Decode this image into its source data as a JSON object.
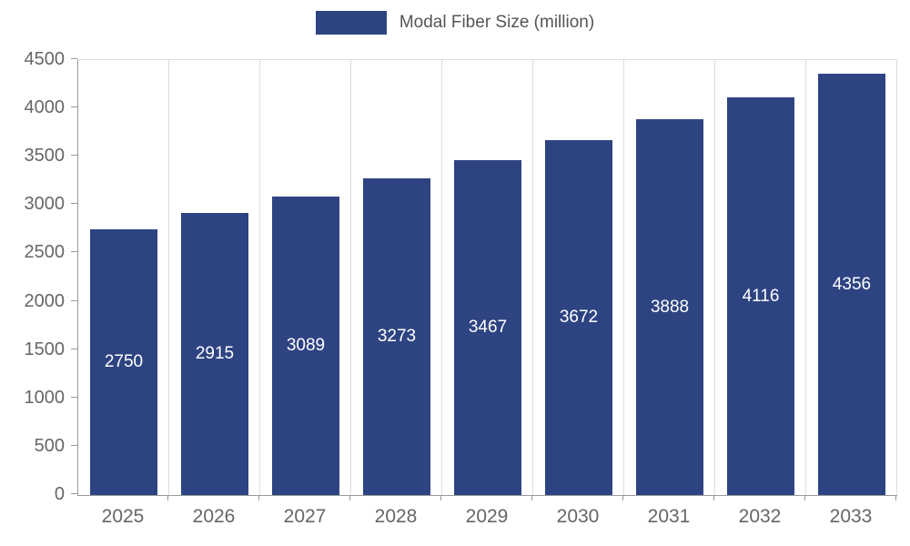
{
  "chart_data": {
    "type": "bar",
    "title": "Modal Fiber Size (million)",
    "legend_entries": [
      "Modal Fiber Size (million)"
    ],
    "legend_position": "top",
    "categories": [
      "2025",
      "2026",
      "2027",
      "2028",
      "2029",
      "2030",
      "2031",
      "2032",
      "2033"
    ],
    "values": [
      2750,
      2915,
      3089,
      3273,
      3467,
      3672,
      3888,
      4116,
      4356
    ],
    "xlabel": "",
    "ylabel": "",
    "ylim": [
      0,
      4500
    ],
    "yticks": [
      0,
      500,
      1000,
      1500,
      2000,
      2500,
      3000,
      3500,
      4000,
      4500
    ],
    "grid": "vertical-only",
    "bar_label_position": "inside-center",
    "colors": {
      "bar": "#2e4482",
      "bar_label": "#ffffff",
      "axis_text": "#666666",
      "legend_text": "#555555",
      "gridline": "#dddddd",
      "axis_line": "#999999",
      "background": "#ffffff"
    }
  }
}
